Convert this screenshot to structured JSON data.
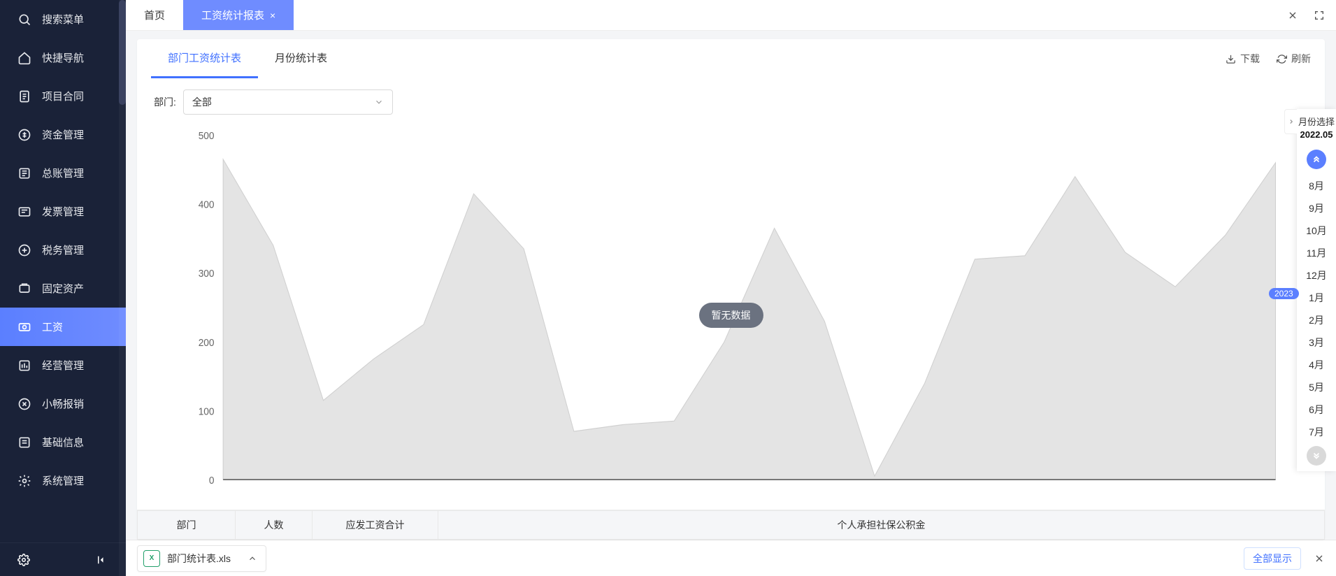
{
  "sidebar": {
    "items": [
      {
        "id": "search-menu",
        "label": "搜索菜单",
        "icon": "search"
      },
      {
        "id": "quick-nav",
        "label": "快捷导航",
        "icon": "home"
      },
      {
        "id": "project-contract",
        "label": "项目合同",
        "icon": "doc"
      },
      {
        "id": "fund-mgmt",
        "label": "资金管理",
        "icon": "money"
      },
      {
        "id": "ledger-mgmt",
        "label": "总账管理",
        "icon": "ledger"
      },
      {
        "id": "invoice-mgmt",
        "label": "发票管理",
        "icon": "invoice"
      },
      {
        "id": "tax-mgmt",
        "label": "税务管理",
        "icon": "tax"
      },
      {
        "id": "fixed-asset",
        "label": "固定资产",
        "icon": "asset"
      },
      {
        "id": "salary",
        "label": "工资",
        "icon": "salary",
        "active": true
      },
      {
        "id": "ops-mgmt",
        "label": "经营管理",
        "icon": "ops"
      },
      {
        "id": "expense",
        "label": "小畅报销",
        "icon": "expense"
      },
      {
        "id": "base-info",
        "label": "基础信息",
        "icon": "info"
      },
      {
        "id": "sys-mgmt",
        "label": "系统管理",
        "icon": "gear"
      }
    ]
  },
  "topTabs": [
    {
      "id": "home",
      "label": "首页",
      "closable": false,
      "active": false
    },
    {
      "id": "salary-report",
      "label": "工资统计报表",
      "closable": true,
      "active": true
    }
  ],
  "innerTabs": [
    {
      "id": "dept-stat",
      "label": "部门工资统计表",
      "active": true
    },
    {
      "id": "month-stat",
      "label": "月份统计表",
      "active": false
    }
  ],
  "panelActions": {
    "download": "下载",
    "refresh": "刷新"
  },
  "filter": {
    "label": "部门:",
    "selected": "全部"
  },
  "chart": {
    "type": "area",
    "ylim": [
      0,
      500
    ],
    "ytick_step": 100,
    "yticks": [
      0,
      100,
      200,
      300,
      400,
      500
    ],
    "values": [
      465,
      340,
      115,
      175,
      225,
      415,
      335,
      70,
      80,
      85,
      200,
      365,
      230,
      5,
      140,
      320,
      325,
      440,
      330,
      280,
      355,
      460
    ],
    "fill_color": "#e4e4e4",
    "stroke_color": "#d0d0d0",
    "axis_color": "#666666",
    "tick_font_size": 13,
    "tick_color": "#666666",
    "background_color": "#ffffff",
    "tooltip": "暂无数据",
    "tooltip_bg": "#6b7280",
    "tooltip_text": "#ffffff"
  },
  "table": {
    "group_header": "个人承担社保公积金",
    "columns": [
      "部门",
      "人数",
      "应发工资合计"
    ]
  },
  "monthPicker": {
    "title": "月份选择",
    "current": "2022.05",
    "yearBadge": "2023",
    "badge_month_index": 5,
    "items": [
      "8月",
      "9月",
      "10月",
      "11月",
      "12月",
      "1月",
      "2月",
      "3月",
      "4月",
      "5月",
      "6月",
      "7月"
    ]
  },
  "downloadBar": {
    "filename": "部门统计表.xls",
    "showAll": "全部显示"
  },
  "colors": {
    "sidebar_bg": "#1a2238",
    "active_grad_from": "#5b7fff",
    "active_grad_to": "#6f8cff",
    "primary": "#4171ff"
  }
}
